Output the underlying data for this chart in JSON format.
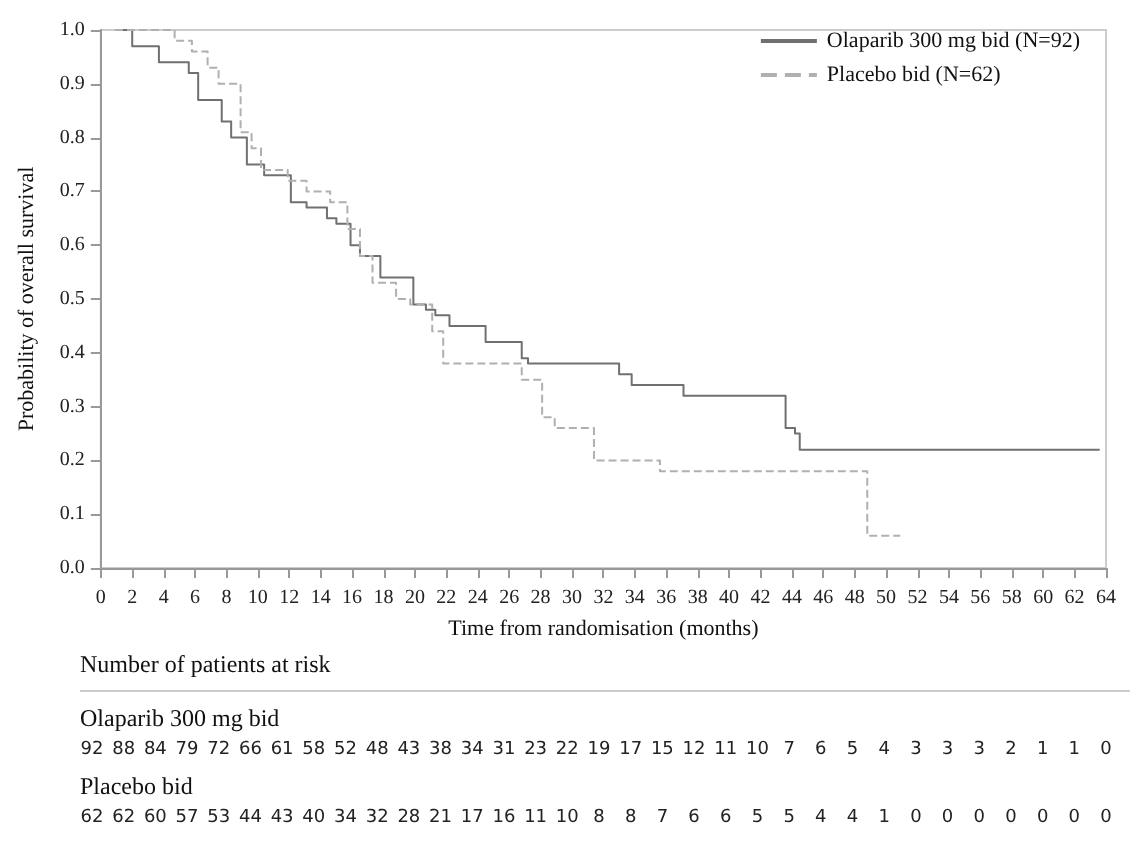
{
  "chart_data": [
    {
      "type": "step",
      "xlabel": "Time from randomisation (months)",
      "ylabel": "Probability of overall survival",
      "xlim": [
        0,
        64
      ],
      "xticks": [
        0,
        2,
        4,
        6,
        8,
        10,
        12,
        14,
        16,
        18,
        20,
        22,
        24,
        26,
        28,
        30,
        32,
        34,
        36,
        38,
        40,
        42,
        44,
        46,
        48,
        50,
        52,
        54,
        56,
        58,
        60,
        62,
        64
      ],
      "ylim": [
        0,
        1
      ],
      "yticks": [
        {
          "value": 0,
          "label": "0.0"
        },
        0.1,
        0.2,
        0.3,
        0.4,
        0.5,
        0.6,
        0.7,
        0.8,
        0.9,
        {
          "value": 1,
          "label": "1.0"
        }
      ],
      "legend": "top right",
      "grid": false,
      "marker": "none",
      "series": [
        {
          "name": "Olaparib 300 mg bid (N=92)",
          "color": "#707070",
          "line_style": "solid",
          "x": [
            0.9,
            2,
            3.7,
            5.6,
            6.2,
            7.7,
            8.3,
            9.3,
            10.4,
            12.1,
            13.1,
            14.4,
            15,
            15.9,
            16.5,
            17.8,
            19.9,
            20.7,
            21.3,
            22.2,
            24.5,
            26.8,
            27.2,
            33,
            33.8,
            37.1,
            43.6,
            44.2,
            44.5,
            63.6
          ],
          "values": [
            1,
            0.97,
            0.94,
            0.92,
            0.87,
            0.83,
            0.8,
            0.75,
            0.73,
            0.68,
            0.67,
            0.65,
            0.64,
            0.6,
            0.58,
            0.54,
            0.49,
            0.48,
            0.47,
            0.45,
            0.42,
            0.39,
            0.38,
            0.36,
            0.34,
            0.32,
            0.26,
            0.25,
            0.22,
            0.22
          ]
        },
        {
          "name": "Placebo bid (N=62)",
          "color": "#b0b0b0",
          "line_style": "dashed",
          "x": [
            0.9,
            4.7,
            5.8,
            6.8,
            7.5,
            8.9,
            9.6,
            10.2,
            11.9,
            13.1,
            14.6,
            15.7,
            16.5,
            17.3,
            18.8,
            19.7,
            21.1,
            21.8,
            26.8,
            28.1,
            28.9,
            31.4,
            35.6,
            48.8,
            50.9
          ],
          "values": [
            1,
            0.98,
            0.96,
            0.93,
            0.9,
            0.81,
            0.78,
            0.74,
            0.72,
            0.7,
            0.68,
            0.63,
            0.58,
            0.53,
            0.5,
            0.49,
            0.44,
            0.38,
            0.35,
            0.28,
            0.26,
            0.2,
            0.18,
            0.06,
            0.06
          ]
        }
      ]
    },
    {
      "type": "other",
      "title": "Number of patients at risk",
      "annotations": [
        "Olaparib 300 mg bid",
        "92 88 84 79 72 66 61 58 52 48 43 38 34 31 23 22 19 17 15 12 11 10 7 6 5 4 3 3 3 2 1 1 0",
        "Placebo bid",
        "62 62 60 57 53 44 43 40 34 32 28 21 17 16 11 10 8 8 7 6 6 5 5 4 4 1 0 0 0 0 0 0 0"
      ]
    }
  ]
}
